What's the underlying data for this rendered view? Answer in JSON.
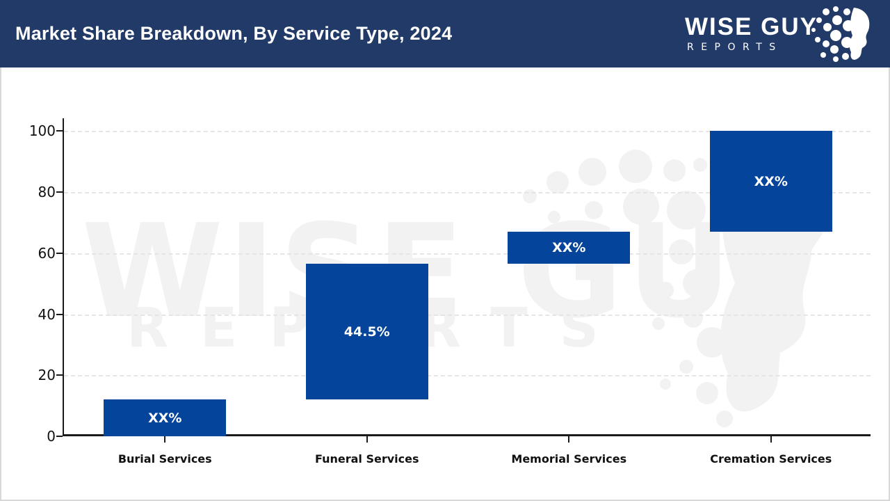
{
  "header": {
    "title": "Market Share Breakdown, By Service Type, 2024",
    "bg_color": "#223a68",
    "logo": {
      "line1": "WISE GUY",
      "line2": "REPORTS"
    }
  },
  "watermark": {
    "line1": "WISE GUY",
    "line2": "REPORTS"
  },
  "chart_data": {
    "type": "bar",
    "variant": "floating-breakdown",
    "title": "Market Share Breakdown, By Service Type, 2024",
    "xlabel": "",
    "ylabel": "",
    "categories": [
      "Burial Services",
      "Funeral Services",
      "Memorial Services",
      "Cremation Services"
    ],
    "segments": [
      {
        "from": 0,
        "to": 12,
        "value_pct": 12,
        "label": "XX%"
      },
      {
        "from": 12,
        "to": 56.5,
        "value_pct": 44.5,
        "label": "44.5%"
      },
      {
        "from": 56.5,
        "to": 67,
        "value_pct": 10.5,
        "label": "XX%"
      },
      {
        "from": 67,
        "to": 100,
        "value_pct": 33,
        "label": "XX%"
      }
    ],
    "yticks": [
      0,
      20,
      40,
      60,
      80,
      100
    ],
    "ylim": [
      0,
      104.2
    ],
    "grid": "horizontal-dashed",
    "legend": "none",
    "bar_color": "#05449b"
  }
}
